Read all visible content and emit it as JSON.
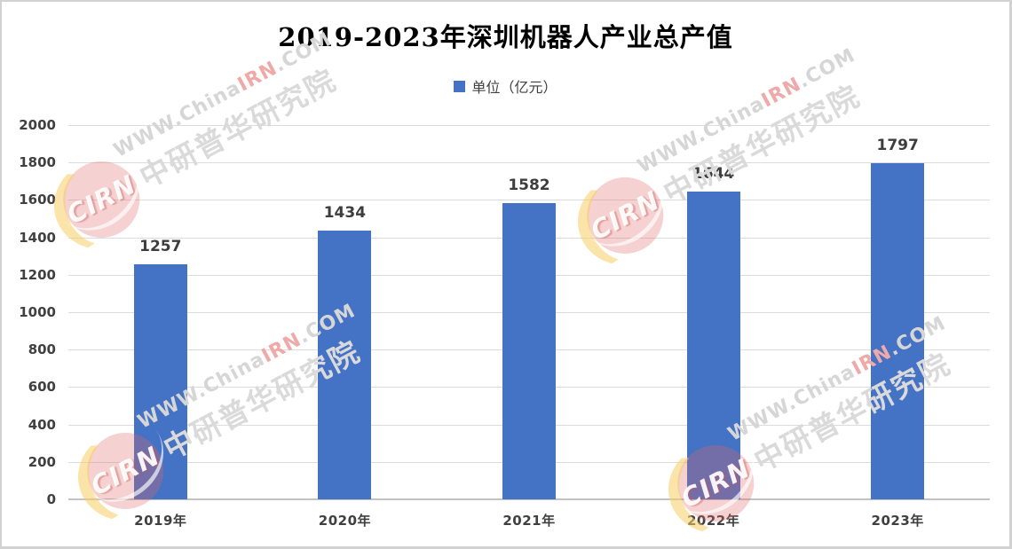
{
  "title": "2019-2023年深圳机器人产业总产值",
  "legend": {
    "label": "单位（亿元）",
    "marker_color": "#4472C4"
  },
  "chart_data": {
    "type": "bar",
    "title": "2019-2023年深圳机器人产业总产值",
    "categories": [
      "2019年",
      "2020年",
      "2021年",
      "2022年",
      "2023年"
    ],
    "values": [
      1257,
      1434,
      1582,
      1644,
      1797
    ],
    "series_name": "单位（亿元）",
    "xlabel": "",
    "ylabel": "",
    "ylim": [
      0,
      2000
    ],
    "yticks": [
      0,
      200,
      400,
      600,
      800,
      1000,
      1200,
      1400,
      1600,
      1800,
      2000
    ],
    "grid": true,
    "legend_position": "top",
    "bar_color": "#4472C4",
    "data_labels": true
  },
  "watermark": {
    "url_prefix": "WWW.China",
    "url_highlight": "IRN",
    "url_suffix": ".COM",
    "org_name": "中研普华研究院",
    "logo_text": "CIRN"
  },
  "colors": {
    "bar": "#4472C4",
    "gridline": "#DCDCDC",
    "axis_line": "#C3C3C3",
    "axis_text": "#404040",
    "title_text": "#000000",
    "watermark_gray": "#D9D9D9",
    "watermark_red": "#F0A9A9"
  }
}
